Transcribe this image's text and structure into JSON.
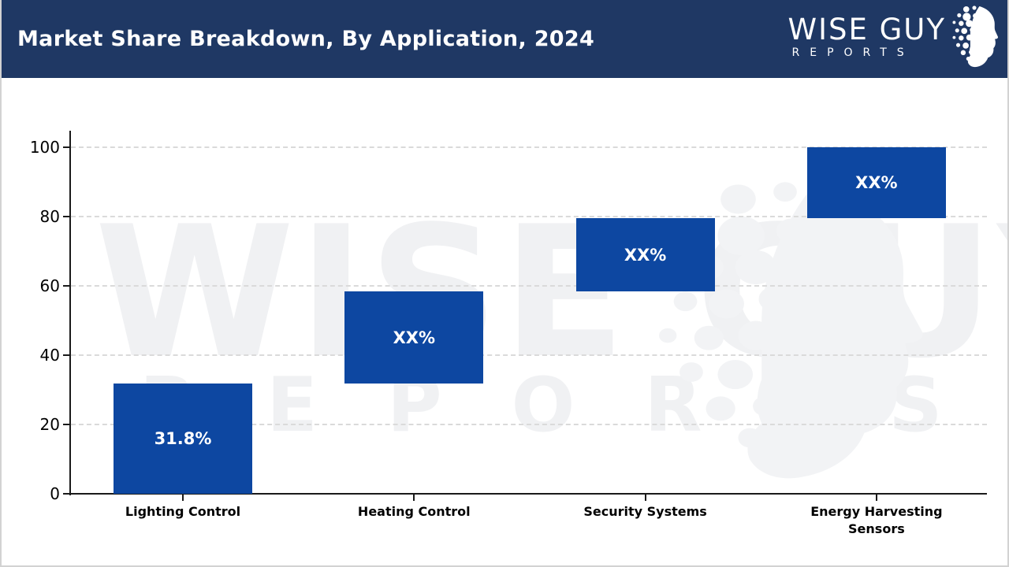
{
  "header": {
    "title": "Market Share Breakdown, By Application, 2024",
    "logo_line1": "WISE GUY",
    "logo_line2": "REPORTS"
  },
  "watermark": {
    "line1": "WISE GUY",
    "line2": "REPORTS"
  },
  "colors": {
    "header_bg": "#1f3864",
    "bar": "#0d47a1",
    "bar_label": "#ffffff",
    "grid": "#dadada",
    "axis": "#1a1a1a",
    "watermark": "#f0f1f3"
  },
  "chart_data": {
    "type": "bar",
    "variant": "waterfall",
    "title": "Market Share Breakdown, By Application, 2024",
    "categories": [
      "Lighting Control",
      "Heating Control",
      "Security Systems",
      "Energy Harvesting Sensors"
    ],
    "bars": [
      {
        "category": "Lighting Control",
        "label": "31.8%",
        "start": 0,
        "end": 31.8
      },
      {
        "category": "Heating Control",
        "label": "XX%",
        "start": 31.8,
        "end": 58.4
      },
      {
        "category": "Security Systems",
        "label": "XX%",
        "start": 58.4,
        "end": 79.5
      },
      {
        "category": "Energy Harvesting Sensors",
        "label": "XX%",
        "start": 79.5,
        "end": 100
      }
    ],
    "y_ticks": [
      0,
      20,
      40,
      60,
      80,
      100
    ],
    "ylim": [
      0,
      105
    ],
    "xlabel": "",
    "ylabel": "",
    "grid": "horizontal-dashed",
    "legend": "none"
  }
}
